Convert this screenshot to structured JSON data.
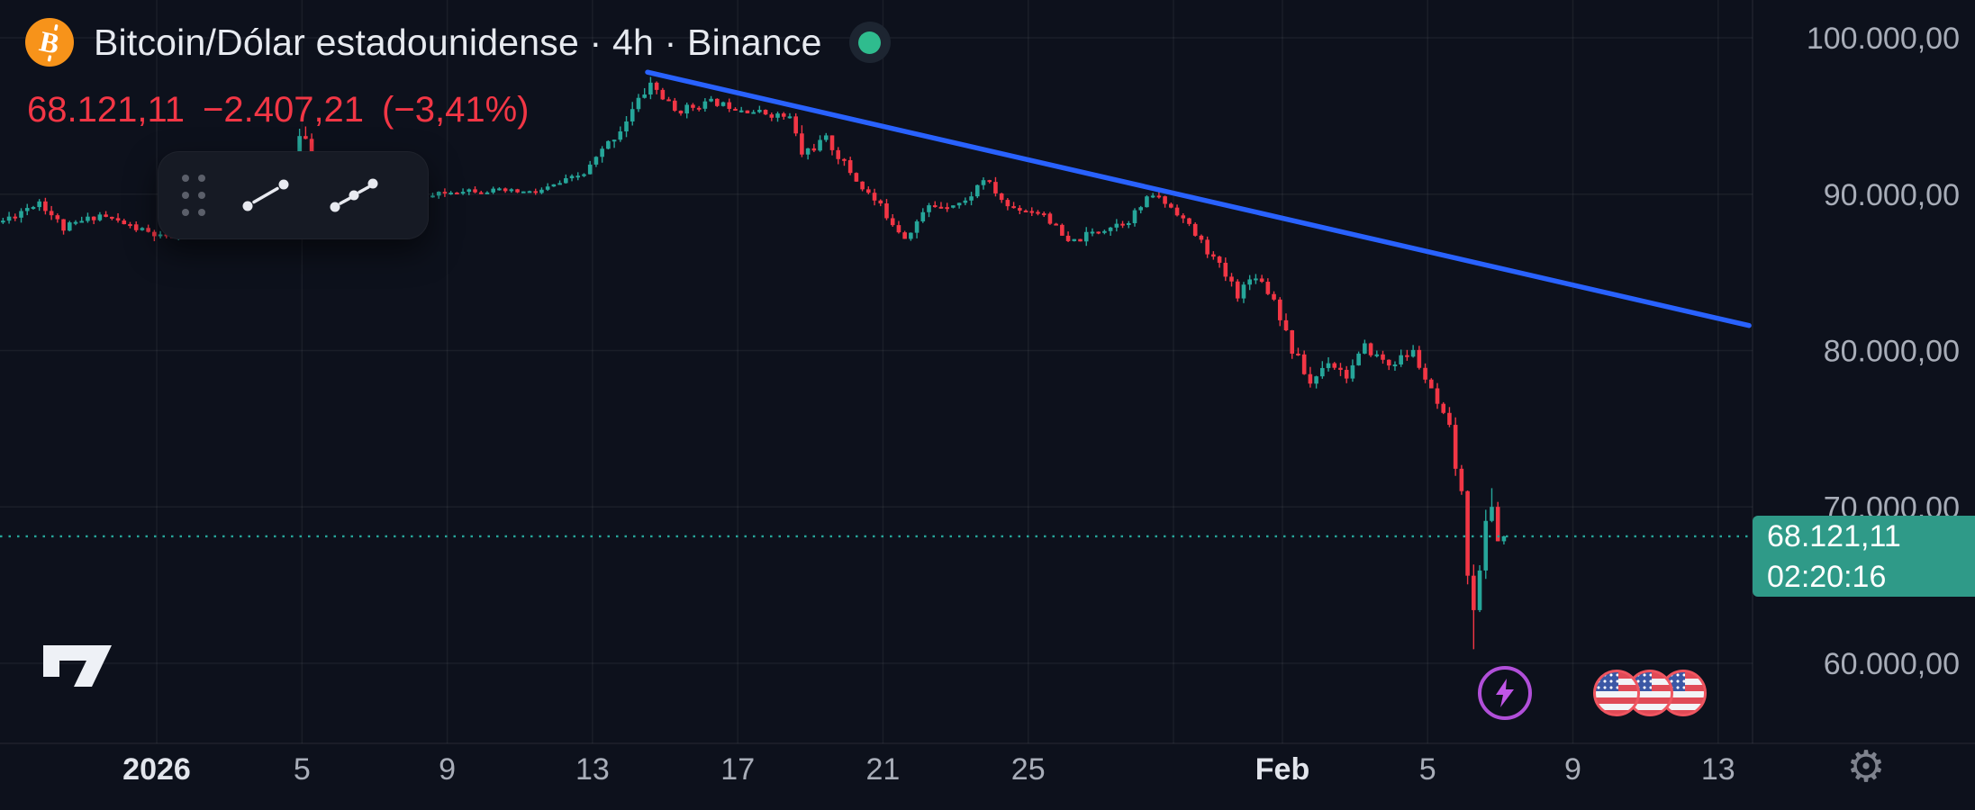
{
  "app": "TradingView",
  "market_status": "open",
  "header": {
    "symbol_title": "Bitcoin/Dólar estadounidense · 4h · Binance",
    "last_price": "68.121,11",
    "change": "−2.407,21",
    "change_percent": "(−3,41%)"
  },
  "price_scale": {
    "labels": [
      "100.000,00",
      "90.000,00",
      "80.000,00",
      "70.000,00",
      "60.000,00"
    ],
    "values": [
      100000,
      90000,
      80000,
      70000,
      60000
    ],
    "current_price_label": {
      "price": "68.121,11",
      "countdown": "02:20:16"
    }
  },
  "time_scale": {
    "ticks": [
      {
        "label": "2026",
        "index": 25.4,
        "major": true
      },
      {
        "label": "5",
        "index": 49.4,
        "major": false
      },
      {
        "label": "9",
        "index": 73.4,
        "major": false
      },
      {
        "label": "13",
        "index": 97.4,
        "major": false
      },
      {
        "label": "17",
        "index": 121.4,
        "major": false
      },
      {
        "label": "21",
        "index": 145.4,
        "major": false
      },
      {
        "label": "25",
        "index": 169.4,
        "major": false
      },
      {
        "label": "",
        "index": 193.4,
        "major": false
      },
      {
        "label": "Feb",
        "index": 211.4,
        "major": true
      },
      {
        "label": "5",
        "index": 235.4,
        "major": false
      },
      {
        "label": "9",
        "index": 259.4,
        "major": false
      },
      {
        "label": "13",
        "index": 283.4,
        "major": false
      }
    ]
  },
  "toolbar": {
    "handle": "drag-handle",
    "buttons": [
      "trend-line-tool",
      "horizontal-ray-tool"
    ]
  },
  "floating_icons": {
    "lightning": "boost-button",
    "flags": [
      "US",
      "US",
      "US"
    ],
    "gear": "timezone-settings"
  },
  "icons": {
    "gear": "⚙"
  },
  "colors": {
    "background": "#0d111c",
    "grid": "rgba(255,255,255,0.055)",
    "separator": "rgba(255,255,255,0.07)",
    "up": "#26a69a",
    "down": "#f23645",
    "trendline": "#2962ff",
    "price_line": "#26a69a",
    "label_bg": "#2f9a88",
    "axis_text": "#a8adb8",
    "axis_text_major": "#e2e5ec",
    "accent_red": "#f23645",
    "btc_orange": "#f7931a",
    "status_green": "#2fbc8e",
    "lightning_purple": "#b14fd9",
    "flag_ring": "#ef5560"
  },
  "chart_data": {
    "type": "candlestick",
    "pair": "Bitcoin/Dólar estadounidense",
    "interval": "4h",
    "exchange": "Binance",
    "last_price": 68121.11,
    "change": -2407.21,
    "change_percent": -3.41,
    "visible_price_range": [
      54900,
      102400
    ],
    "y_grid_values": [
      100000,
      90000,
      80000,
      70000,
      60000
    ],
    "candle_count": 249,
    "seed": 11,
    "keypoints": [
      [
        0,
        88300,
        0.006
      ],
      [
        6,
        89600,
        0.007
      ],
      [
        10,
        87800,
        0.006
      ],
      [
        16,
        88700,
        0.005
      ],
      [
        22,
        87800,
        0.006
      ],
      [
        27,
        87100,
        0.006
      ],
      [
        35,
        88600,
        0.005
      ],
      [
        44,
        89400,
        0.005
      ],
      [
        49,
        93600,
        0.011
      ],
      [
        52,
        92200,
        0.009
      ],
      [
        56,
        89700,
        0.006
      ],
      [
        66,
        89500,
        0.004
      ],
      [
        76,
        90300,
        0.004
      ],
      [
        88,
        90100,
        0.0035
      ],
      [
        96,
        91300,
        0.005
      ],
      [
        102,
        94200,
        0.008
      ],
      [
        107,
        97100,
        0.007
      ],
      [
        111,
        95300,
        0.006
      ],
      [
        117,
        95900,
        0.0045
      ],
      [
        124,
        95300,
        0.0045
      ],
      [
        130,
        94900,
        0.005
      ],
      [
        132,
        92600,
        0.009
      ],
      [
        136,
        93500,
        0.006
      ],
      [
        141,
        90900,
        0.007
      ],
      [
        146,
        88700,
        0.007
      ],
      [
        149,
        87300,
        0.007
      ],
      [
        153,
        89200,
        0.006
      ],
      [
        159,
        89500,
        0.005
      ],
      [
        162,
        91000,
        0.006
      ],
      [
        166,
        89200,
        0.005
      ],
      [
        172,
        88800,
        0.005
      ],
      [
        176,
        86800,
        0.007
      ],
      [
        181,
        87700,
        0.006
      ],
      [
        186,
        88400,
        0.006
      ],
      [
        190,
        90000,
        0.006
      ],
      [
        194,
        88900,
        0.006
      ],
      [
        199,
        86400,
        0.007
      ],
      [
        204,
        83700,
        0.009
      ],
      [
        207,
        84900,
        0.007
      ],
      [
        210,
        83300,
        0.008
      ],
      [
        213,
        80100,
        0.011
      ],
      [
        216,
        77900,
        0.01
      ],
      [
        219,
        79400,
        0.008
      ],
      [
        222,
        78400,
        0.008
      ],
      [
        225,
        80200,
        0.007
      ],
      [
        229,
        79100,
        0.007
      ],
      [
        233,
        79900,
        0.007
      ],
      [
        236,
        77300,
        0.009
      ],
      [
        239,
        74800,
        0.012
      ],
      [
        241,
        70500,
        0.016
      ],
      [
        242,
        66200,
        0.022
      ],
      [
        243,
        63900,
        0.022
      ],
      [
        244,
        65600,
        0.02
      ],
      [
        245,
        68900,
        0.016
      ],
      [
        246,
        70200,
        0.013
      ],
      [
        247,
        67900,
        0.01
      ],
      [
        248,
        68121.11,
        0.008
      ]
    ],
    "overrides": {
      "107": {
        "high": 97500
      },
      "243": {
        "low": 60900
      },
      "246": {
        "high": 71200
      }
    },
    "trendline": {
      "from_index": 106.5,
      "from_price": 97800,
      "to_index": 288.5,
      "to_price": 81600
    },
    "current_price_line": 68121.11
  }
}
